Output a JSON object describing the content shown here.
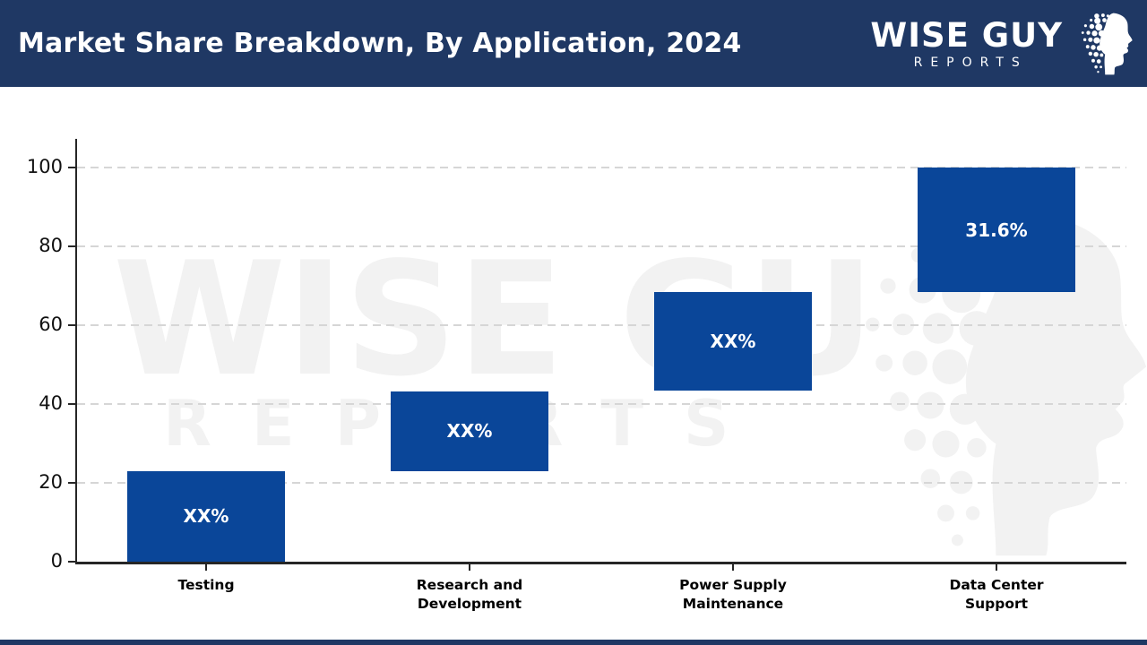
{
  "header": {
    "title": "Market Share Breakdown, By Application, 2024",
    "logo_line1": "WISE GUY",
    "logo_line2": "REPORTS"
  },
  "watermark": {
    "line1": "WISE GU",
    "line2": "REPORTS"
  },
  "chart_data": {
    "type": "bar",
    "variant": "waterfall-floating-bars",
    "title": "Market Share Breakdown, By Application, 2024",
    "categories": [
      "Testing",
      "Research and\nDevelopment",
      "Power Supply\nMaintenance",
      "Data Center\nSupport"
    ],
    "bars": [
      {
        "category": "Testing",
        "start": 0,
        "end": 23,
        "label": "XX%"
      },
      {
        "category": "Research and\nDevelopment",
        "start": 23,
        "end": 43.2,
        "label": "XX%"
      },
      {
        "category": "Power Supply\nMaintenance",
        "start": 43.3,
        "end": 68.4,
        "label": "XX%"
      },
      {
        "category": "Data Center\nSupport",
        "start": 68.4,
        "end": 100,
        "label": "31.6%"
      }
    ],
    "yticks": [
      0,
      20,
      40,
      60,
      80,
      100
    ],
    "ylim": [
      0,
      107
    ],
    "xlabel": "",
    "ylabel": "",
    "grid": "horizontal-dashed",
    "legend": "none"
  },
  "colors": {
    "header_bg": "#1f3864",
    "footer_bg": "#1f3864",
    "bar": "#0a4699",
    "grid": "#d6d6d6",
    "axis": "#262626",
    "watermark": "#f2f2f2",
    "value_label": "#ffffff"
  }
}
